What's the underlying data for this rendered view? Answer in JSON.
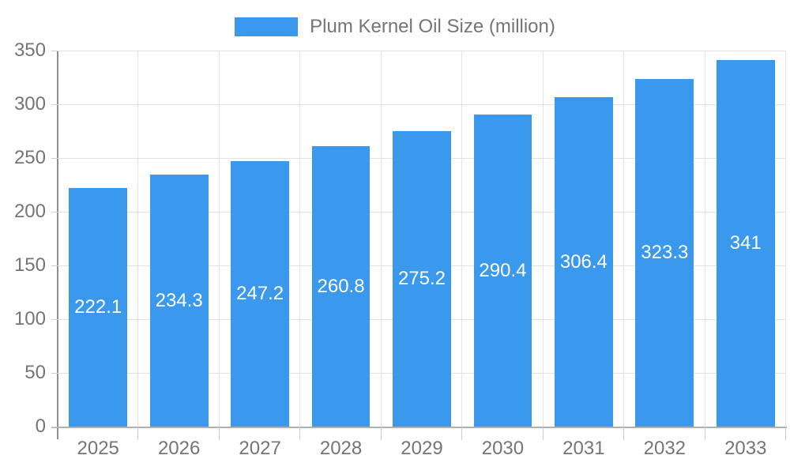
{
  "chart_data": {
    "type": "bar",
    "title": "",
    "legend": "Plum Kernel Oil Size (million)",
    "categories": [
      "2025",
      "2026",
      "2027",
      "2028",
      "2029",
      "2030",
      "2031",
      "2032",
      "2033"
    ],
    "values": [
      222.1,
      234.3,
      247.2,
      260.8,
      275.2,
      290.4,
      306.4,
      323.3,
      341
    ],
    "xlabel": "",
    "ylabel": "",
    "ylim": [
      0,
      350
    ],
    "ytick_step": 50,
    "ytick_labels": [
      "0",
      "50",
      "100",
      "150",
      "200",
      "250",
      "300",
      "350"
    ],
    "grid": true,
    "legend_position": "top",
    "value_labels_inside_bars": true,
    "colors": {
      "bar": "#3A99EC",
      "value_label": "#FFFFFF",
      "axis_text": "#757575",
      "grid_line": "#E3E3E3",
      "y_axis_line": "#8F8F8F",
      "x_axis_line": "#B0B0B0",
      "tick": "#CCCCCC",
      "background": "#FFFFFF"
    }
  }
}
